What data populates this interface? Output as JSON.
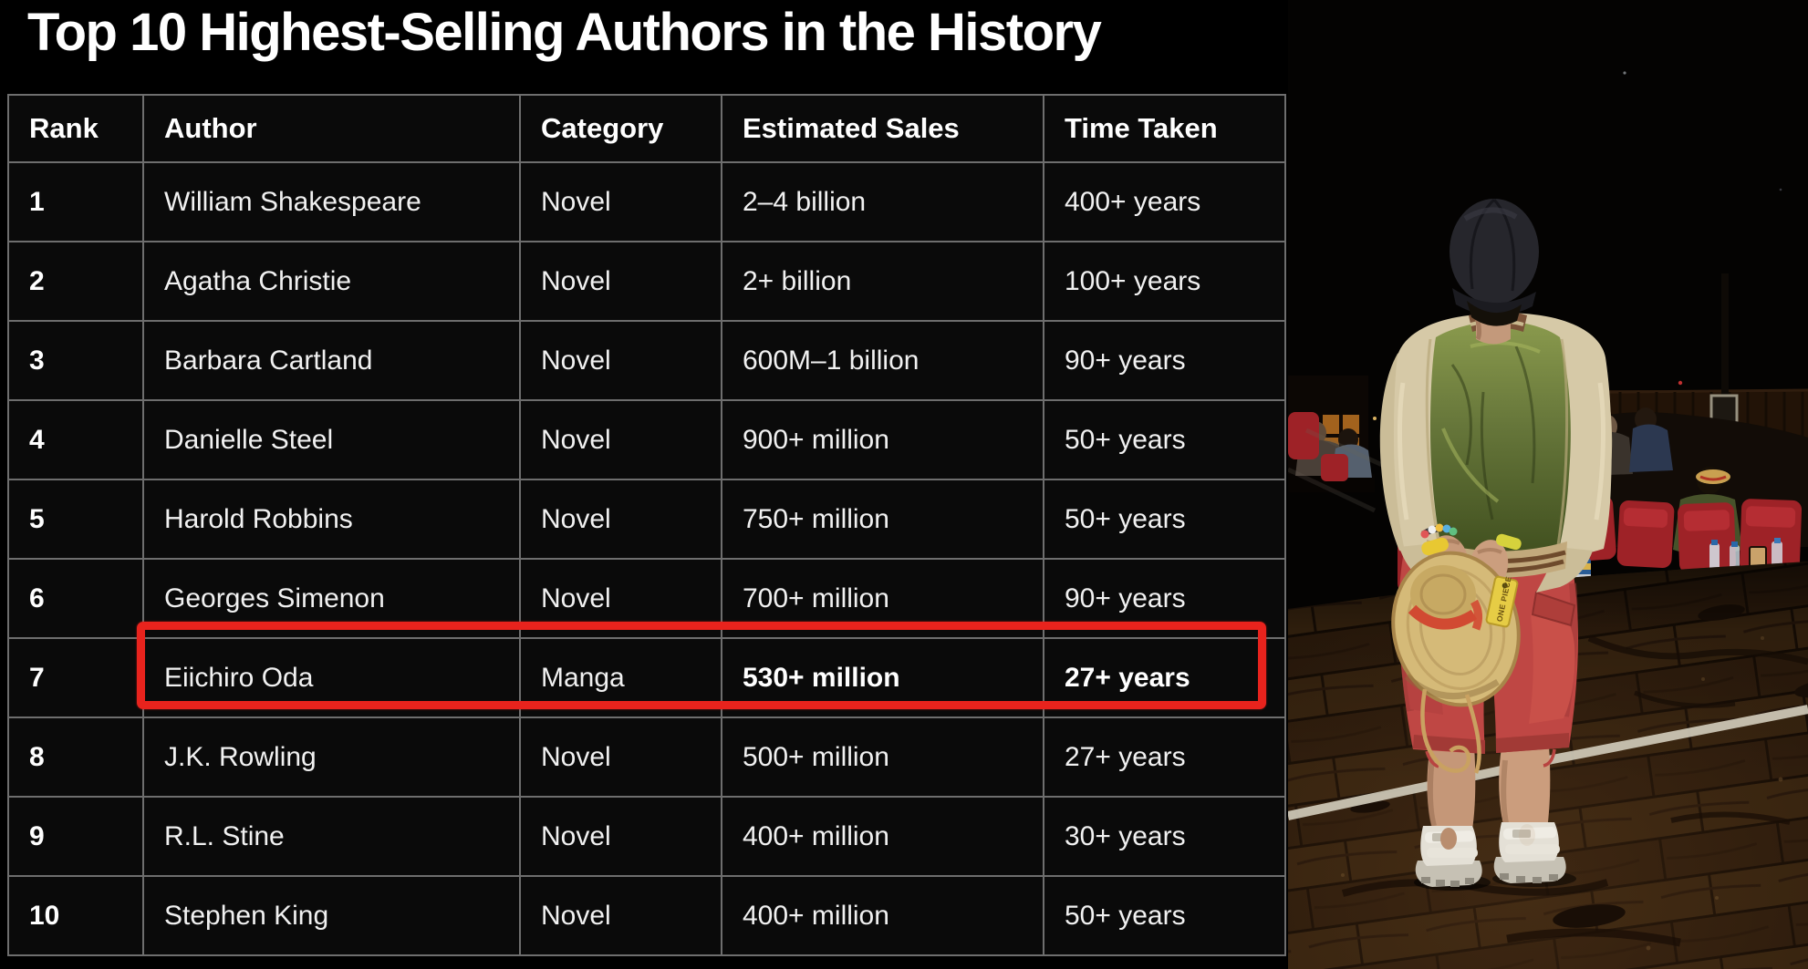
{
  "chart_data": {
    "type": "table",
    "title": "Top 10 Highest-Selling Authors in the History",
    "columns": [
      "Rank",
      "Author",
      "Category",
      "Estimated Sales",
      "Time Taken"
    ],
    "rows": [
      {
        "rank": "1",
        "author": "William Shakespeare",
        "category": "Novel",
        "sales": "2–4 billion",
        "time": "400+ years",
        "highlight": false
      },
      {
        "rank": "2",
        "author": "Agatha Christie",
        "category": "Novel",
        "sales": "2+ billion",
        "time": "100+ years",
        "highlight": false
      },
      {
        "rank": "3",
        "author": "Barbara Cartland",
        "category": "Novel",
        "sales": "600M–1 billion",
        "time": "90+ years",
        "highlight": false
      },
      {
        "rank": "4",
        "author": "Danielle Steel",
        "category": "Novel",
        "sales": "900+ million",
        "time": "50+ years",
        "highlight": false
      },
      {
        "rank": "5",
        "author": "Harold Robbins",
        "category": "Novel",
        "sales": "750+ million",
        "time": "50+ years",
        "highlight": false
      },
      {
        "rank": "6",
        "author": "Georges Simenon",
        "category": "Novel",
        "sales": "700+ million",
        "time": "90+ years",
        "highlight": false
      },
      {
        "rank": "7",
        "author": "Eiichiro Oda",
        "category": "Manga",
        "sales": "530+ million",
        "time": "27+ years",
        "highlight": true
      },
      {
        "rank": "8",
        "author": "J.K. Rowling",
        "category": "Novel",
        "sales": "500+ million",
        "time": "27+ years",
        "highlight": false
      },
      {
        "rank": "9",
        "author": "R.L. Stine",
        "category": "Novel",
        "sales": "400+ million",
        "time": "30+ years",
        "highlight": false
      },
      {
        "rank": "10",
        "author": "Stephen King",
        "category": "Novel",
        "sales": "400+ million",
        "time": "50+ years",
        "highlight": false
      }
    ],
    "highlighted_row_rank": "7",
    "legend_position": "none",
    "grid": true
  },
  "colors": {
    "background": "#000000",
    "cell_background": "#0a0a0a",
    "grid_border": "#6e6e6e",
    "text": "#f1f1f1",
    "highlight_red": "#e8231d"
  },
  "photo": {
    "hat_tag_label": "ONE PIECE"
  }
}
